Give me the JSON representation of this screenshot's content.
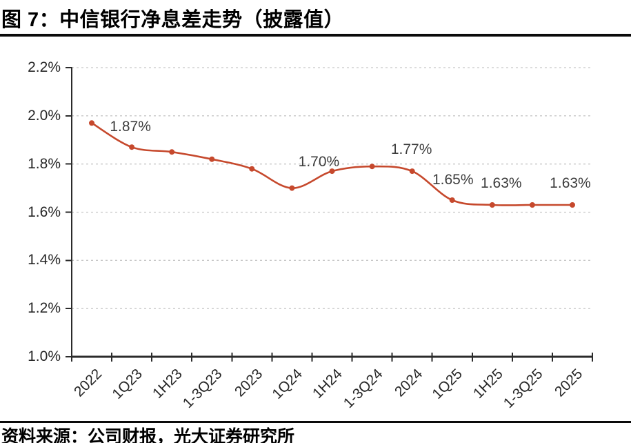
{
  "figure": {
    "title": "图 7：中信银行净息差走势（披露值）",
    "source": "资料来源：公司财报，光大证券研究所"
  },
  "chart_data": {
    "type": "line",
    "title": "图 7：中信银行净息差走势（披露值）",
    "categories": [
      "2022",
      "1Q23",
      "1H23",
      "1-3Q23",
      "2023",
      "1Q24",
      "1H24",
      "1-3Q24",
      "2024",
      "1Q25",
      "1H25",
      "1-3Q25",
      "2025"
    ],
    "series": [
      {
        "name": "中信银行净息差（披露值）",
        "values": [
          1.97,
          1.87,
          1.85,
          1.82,
          1.78,
          1.7,
          1.77,
          1.79,
          1.77,
          1.65,
          1.63,
          1.63,
          1.63
        ]
      }
    ],
    "unit": "%",
    "xlabel": "",
    "ylabel": "",
    "ylim": [
      1.0,
      2.2
    ],
    "y_ticks": [
      {
        "value": 2.2,
        "label": "2.2%"
      },
      {
        "value": 2.0,
        "label": "2.0%"
      },
      {
        "value": 1.8,
        "label": "1.8%"
      },
      {
        "value": 1.6,
        "label": "1.6%"
      },
      {
        "value": 1.4,
        "label": "1.4%"
      },
      {
        "value": 1.2,
        "label": "1.2%"
      },
      {
        "value": 1.0,
        "label": "1.0%"
      }
    ],
    "data_labels": [
      {
        "index": 1,
        "text": "1.87%"
      },
      {
        "index": 5,
        "text": "1.70%"
      },
      {
        "index": 8,
        "text": "1.77%"
      },
      {
        "index": 9,
        "text": "1.65%"
      },
      {
        "index": 10,
        "text": "1.63%"
      },
      {
        "index": 12,
        "text": "1.63%"
      }
    ],
    "grid": "dashed-horizontal",
    "legend": "none",
    "line_style": "smooth",
    "colors": {
      "line": "#C6492D",
      "grid": "#C7C7C7",
      "axis": "#2B2B2B",
      "tick_label": "#262626",
      "data_label": "#3D3D3D"
    }
  }
}
